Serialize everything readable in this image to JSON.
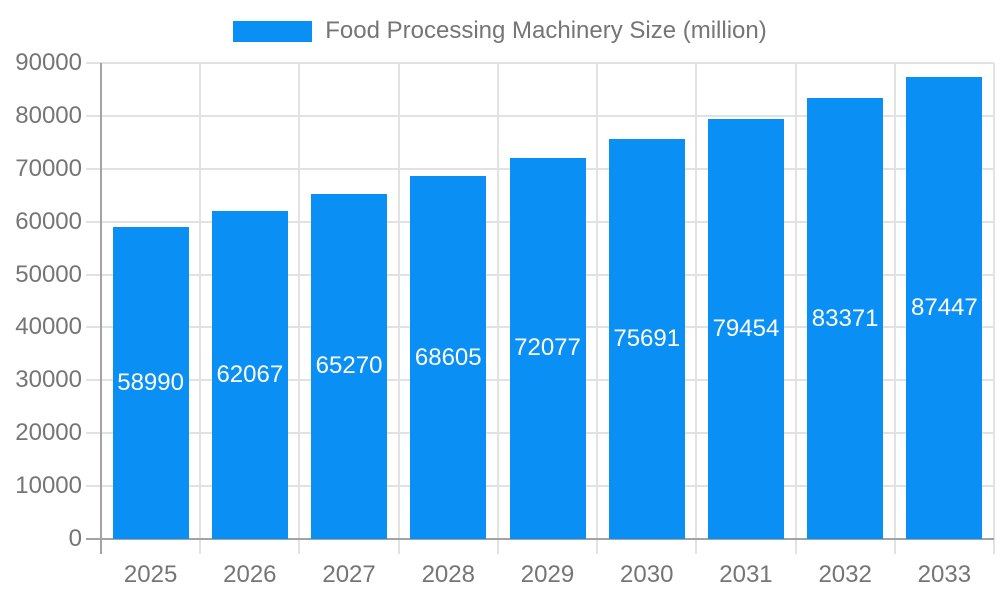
{
  "legend": {
    "label": "Food Processing Machinery Size (million)"
  },
  "colors": {
    "bar": "#0a90f5",
    "grid": "#e2e2e2",
    "axis": "#a3a3a3",
    "text": "#757575",
    "bar_label": "#ffffff",
    "background": "#ffffff"
  },
  "chart_data": {
    "type": "bar",
    "title": "Food Processing Machinery Size (million)",
    "categories": [
      "2025",
      "2026",
      "2027",
      "2028",
      "2029",
      "2030",
      "2031",
      "2032",
      "2033"
    ],
    "values": [
      58990,
      62067,
      65270,
      68605,
      72077,
      75691,
      79454,
      83371,
      87447
    ],
    "xlabel": "",
    "ylabel": "",
    "ylim": [
      0,
      90000
    ],
    "ytick_step": 10000,
    "ytick_labels": [
      "0",
      "10000",
      "20000",
      "30000",
      "40000",
      "50000",
      "60000",
      "70000",
      "80000",
      "90000"
    ],
    "grid": true,
    "legend_position": "top-center",
    "bar_label_position": "inside-center"
  }
}
